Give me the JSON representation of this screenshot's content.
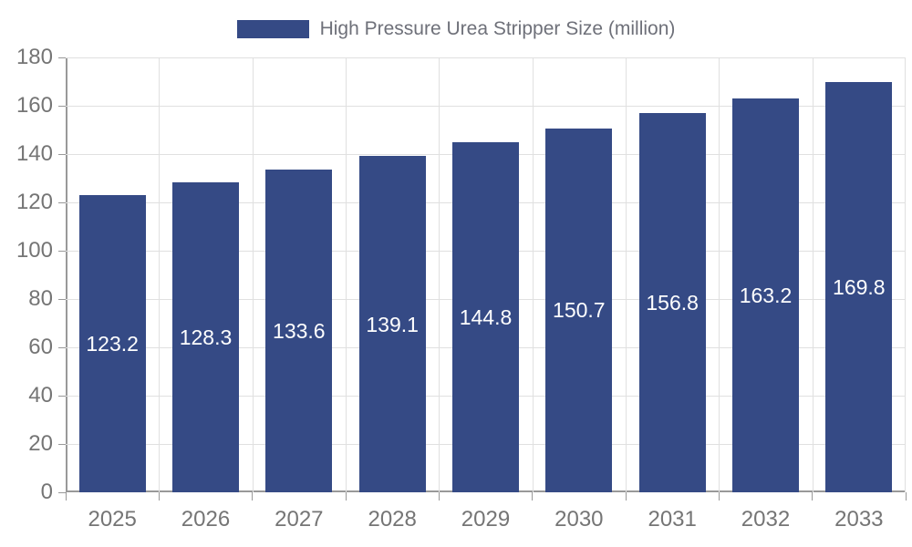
{
  "legend": {
    "label": "High Pressure Urea Stripper Size (million)",
    "swatch_color": "#354A85"
  },
  "chart_data": {
    "type": "bar",
    "title": "",
    "categories": [
      "2025",
      "2026",
      "2027",
      "2028",
      "2029",
      "2030",
      "2031",
      "2032",
      "2033"
    ],
    "values": [
      123.2,
      128.3,
      133.6,
      139.1,
      144.8,
      150.7,
      156.8,
      163.2,
      169.8
    ],
    "series_name": "High Pressure Urea Stripper Size (million)",
    "xlabel": "",
    "ylabel": "",
    "ylim": [
      0,
      180
    ],
    "ytick_step": 20,
    "grid": true,
    "legend_position": "top",
    "value_label_position": "inside-center",
    "bar_color": "#354A85",
    "value_label_color": "#FFFFFF",
    "axis_text_color": "#757575",
    "gridline_color": "#E0E0E0",
    "axis_line_color": "#999999",
    "background_color": "#FFFFFF"
  }
}
